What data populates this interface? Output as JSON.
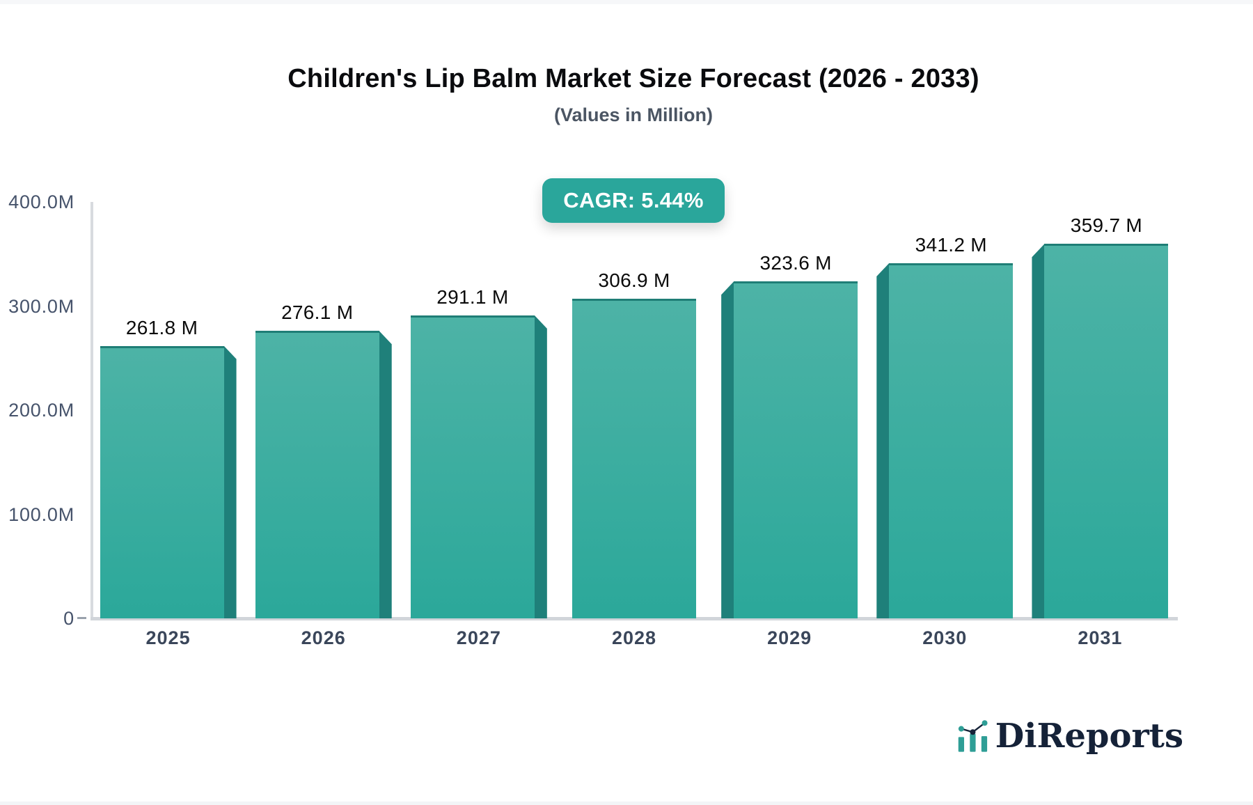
{
  "title": "Children's Lip Balm Market Size Forecast (2026 - 2033)",
  "subtitle": "(Values in Million)",
  "badge": {
    "label": "CAGR: 5.44%",
    "bg_color": "#2aa69b",
    "text_color": "#ffffff"
  },
  "chart_data": {
    "type": "bar",
    "categories": [
      "2025",
      "2026",
      "2027",
      "2028",
      "2029",
      "2030",
      "2031"
    ],
    "values": [
      261.8,
      276.1,
      291.1,
      306.9,
      323.6,
      341.2,
      359.7
    ],
    "value_labels": [
      "261.8 M",
      "276.1 M",
      "291.1 M",
      "306.9 M",
      "323.6 M",
      "341.2 M",
      "359.7 M"
    ],
    "y_ticks": [
      {
        "label": "400.0M",
        "value": 400
      },
      {
        "label": "300.0M",
        "value": 300
      },
      {
        "label": "200.0M",
        "value": 200
      },
      {
        "label": "100.0M",
        "value": 100
      },
      {
        "label": "0",
        "value": 0
      }
    ],
    "ylim": [
      0,
      400
    ],
    "xlabel": "",
    "ylabel": "",
    "grid": "off",
    "legend": "none",
    "style": "pseudo-3d bars, side faces angled toward center vanishing point",
    "bar_color_top": "#4db3a6",
    "bar_color_bottom": "#2ba89a",
    "bar_side_color": "#1f807a"
  },
  "logo": {
    "text": "DiReports",
    "icon": "mini-bar-chart-icon",
    "text_color": "#152238",
    "accent_color": "#2f9e96"
  }
}
